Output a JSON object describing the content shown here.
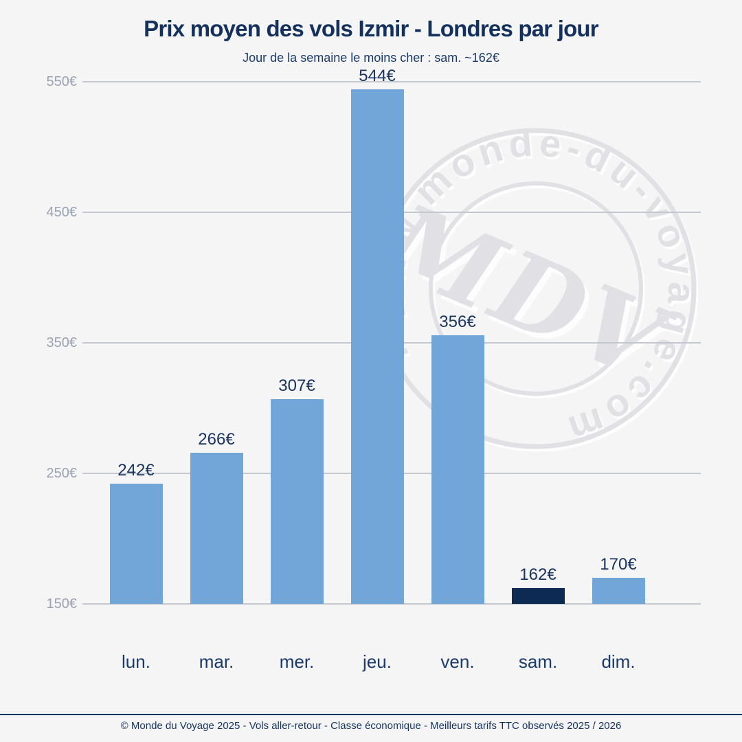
{
  "title": "Prix moyen des vols Izmir - Londres par jour",
  "subtitle": "Jour de la semaine le moins cher : sam. ~162€",
  "watermark": {
    "circle_text": "· www.monde-du-voyage.com",
    "center_text": "MDV"
  },
  "footer": {
    "text": "© Monde du Voyage 2025 - Vols aller-retour - Classe économique - Meilleurs tarifs TTC observés 2025 / 2026"
  },
  "chart_data": {
    "type": "bar",
    "title": "Prix moyen des vols Izmir - Londres par jour",
    "subtitle": "Jour de la semaine le moins cher : sam. ~162€",
    "categories": [
      "lun.",
      "mar.",
      "mer.",
      "jeu.",
      "ven.",
      "sam.",
      "dim."
    ],
    "values": [
      242,
      266,
      307,
      544,
      356,
      162,
      170
    ],
    "value_labels": [
      "242€",
      "266€",
      "307€",
      "544€",
      "356€",
      "162€",
      "170€"
    ],
    "unit": "€",
    "ylim": [
      150,
      550
    ],
    "yticks": [
      550,
      450,
      350,
      250,
      150
    ],
    "ytick_labels": [
      "550€",
      "450€",
      "350€",
      "250€",
      "150€"
    ],
    "grid": true,
    "legend": false,
    "cheapest_index": 5,
    "xlabel": "",
    "ylabel": "",
    "colors": {
      "bar": "#72a5d8",
      "cheapest_bar": "#0d2a52",
      "value_label": "#18335e",
      "axis_label": "#9aa2b2",
      "gridline": "#c2c7d0",
      "day_label": "#1a3a6b"
    }
  },
  "colors": {
    "background": "#f5f5f6",
    "title": "#14305c",
    "subtitle": "#1a3a6b",
    "footer": "#14325f",
    "footer_line": "#14325f",
    "watermark_gray": "#dcdce1",
    "watermark_highlight": "#ffffff"
  }
}
